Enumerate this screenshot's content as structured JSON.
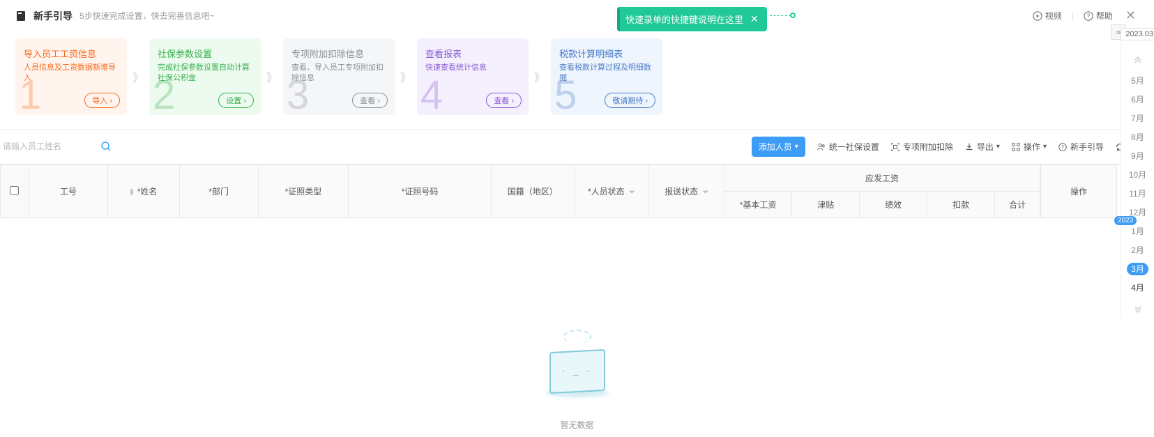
{
  "header": {
    "title": "新手引导",
    "subtitle": "5步快速完成设置，快去完善信息吧~",
    "tip": "快速录单的快捷键说明在这里",
    "video": "视频",
    "help": "帮助"
  },
  "steps": [
    {
      "num": "1",
      "title": "导入员工工资信息",
      "desc": "人员信息及工资数据新增导入",
      "btn": "导入",
      "bg": "#fff4ee",
      "color": "#f86b1d"
    },
    {
      "num": "2",
      "title": "社保参数设置",
      "desc": "完成社保参数设置自动计算社保公积金",
      "btn": "设置",
      "bg": "#edfaf0",
      "color": "#36b24a"
    },
    {
      "num": "3",
      "title": "专项附加扣除信息",
      "desc": "查看、导入员工专项附加扣除信息",
      "btn": "查看",
      "bg": "#f5f6f8",
      "color": "#8a8f99"
    },
    {
      "num": "4",
      "title": "查看报表",
      "desc": "快速查看统计信息",
      "btn": "查看",
      "bg": "#f5f0fd",
      "color": "#8a5bd6"
    },
    {
      "num": "5",
      "title": "税款计算明细表",
      "desc": "查看税款计算过程及明细数据",
      "btn": "敬请期待",
      "bg": "#eef5fd",
      "color": "#4a7bc8"
    }
  ],
  "toolbar": {
    "search_placeholder": "请输入员工姓名",
    "add": "添加人员",
    "social": "统一社保设置",
    "special": "专项附加扣除",
    "export": "导出",
    "operate": "操作",
    "guide": "新手引导",
    "refresh": "刷新"
  },
  "table": {
    "cols": {
      "id": "工号",
      "name": "*姓名",
      "dept": "*部门",
      "cert_type": "*证照类型",
      "cert_no": "*证照号码",
      "nation": "国籍（地区）",
      "status": "*人员状态",
      "report": "报送状态",
      "salary_group": "应发工资",
      "base": "*基本工资",
      "allowance": "津贴",
      "perf": "绩效",
      "deduct": "扣款",
      "total": "合计",
      "op": "操作"
    }
  },
  "empty": {
    "text": "暂无数据"
  },
  "side": {
    "year_label": "2023.03",
    "year_badge": "2023",
    "months_a": [
      "5月",
      "6月",
      "7月",
      "8月",
      "9月",
      "10月",
      "11月",
      "12月"
    ],
    "months_b": [
      "1月",
      "2月"
    ],
    "active": "3月",
    "after": "4月"
  }
}
